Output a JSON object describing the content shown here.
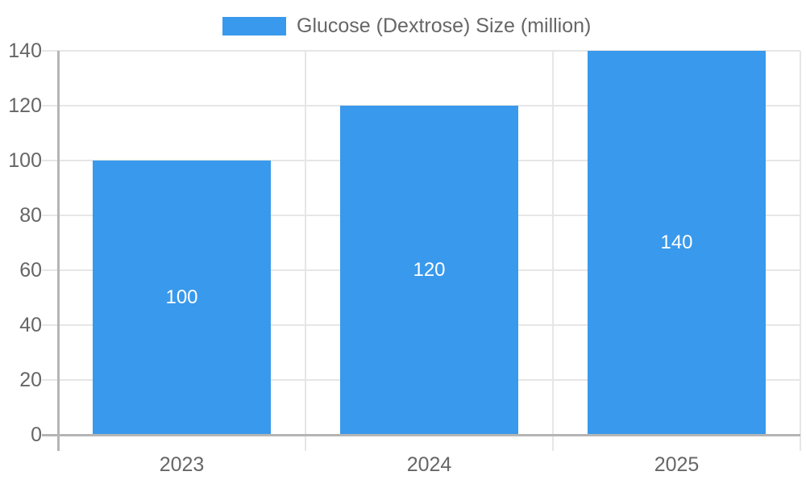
{
  "chart_data": {
    "type": "bar",
    "title": "",
    "categories": [
      "2023",
      "2024",
      "2025"
    ],
    "series": [
      {
        "name": "Glucose (Dextrose) Size (million)",
        "values": [
          100,
          120,
          140
        ]
      }
    ],
    "bar_value_labels": [
      "100",
      "120",
      "140"
    ],
    "xlabel": "",
    "ylabel": "",
    "ylim": [
      0,
      140
    ],
    "yticks": [
      0,
      20,
      40,
      60,
      80,
      100,
      120,
      140
    ],
    "grid": true,
    "legend_position": "top-center",
    "colors": {
      "bar": "#3999EC",
      "grid_light": "#e6e6e6",
      "grid_dark": "#b5b5b5",
      "tick_text": "#666666",
      "bar_label_text": "#ffffff",
      "legend_text": "#666666"
    }
  }
}
